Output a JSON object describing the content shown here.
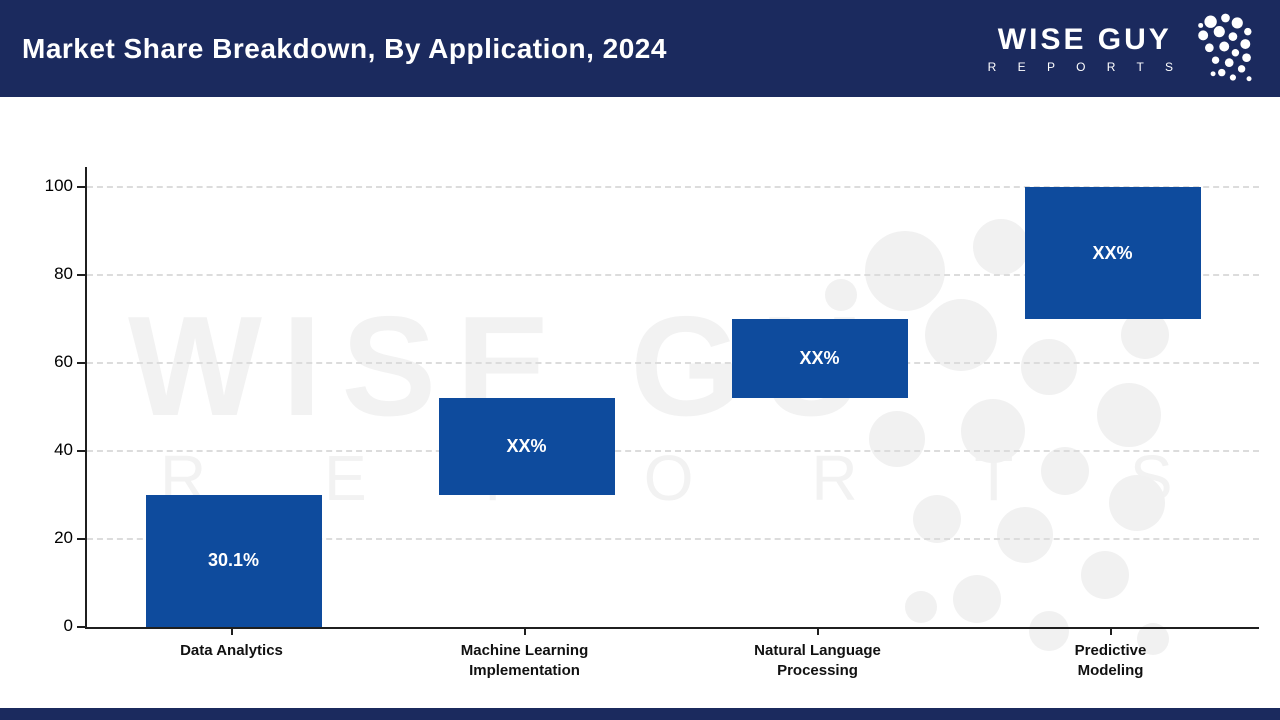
{
  "header": {
    "title": "Market Share Breakdown, By Application, 2024",
    "logo": {
      "name": "WISE GUY",
      "subtitle": "R E P O R T S"
    }
  },
  "watermark": {
    "line1": "WISE GU",
    "line2": "R E P O R T S"
  },
  "chart_data": {
    "type": "bar",
    "subtype": "waterfall",
    "title": "Market Share Breakdown, By Application, 2024",
    "categories": [
      "Data Analytics",
      "Machine Learning Implementation",
      "Natural Language Processing",
      "Predictive Modeling"
    ],
    "category_lines": [
      [
        "Data Analytics"
      ],
      [
        "Machine Learning",
        "Implementation"
      ],
      [
        "Natural Language",
        "Processing"
      ],
      [
        "Predictive",
        "Modeling"
      ]
    ],
    "segments": [
      {
        "category": "Data Analytics",
        "start": 0,
        "end": 30.1,
        "label": "30.1%"
      },
      {
        "category": "Machine Learning Implementation",
        "start": 30.1,
        "end": 52,
        "label": "XX%"
      },
      {
        "category": "Natural Language Processing",
        "start": 52,
        "end": 70,
        "label": "XX%"
      },
      {
        "category": "Predictive Modeling",
        "start": 70,
        "end": 100,
        "label": "XX%"
      }
    ],
    "xlabel": "",
    "ylabel": "",
    "ylim": [
      0,
      100
    ],
    "yticks": [
      0,
      20,
      40,
      60,
      80,
      100
    ],
    "grid": "horizontal-dashed",
    "legend": "none",
    "bar_color": "#0e4b9d",
    "label_color": "#ffffff",
    "header_color": "#1b2a5e"
  }
}
